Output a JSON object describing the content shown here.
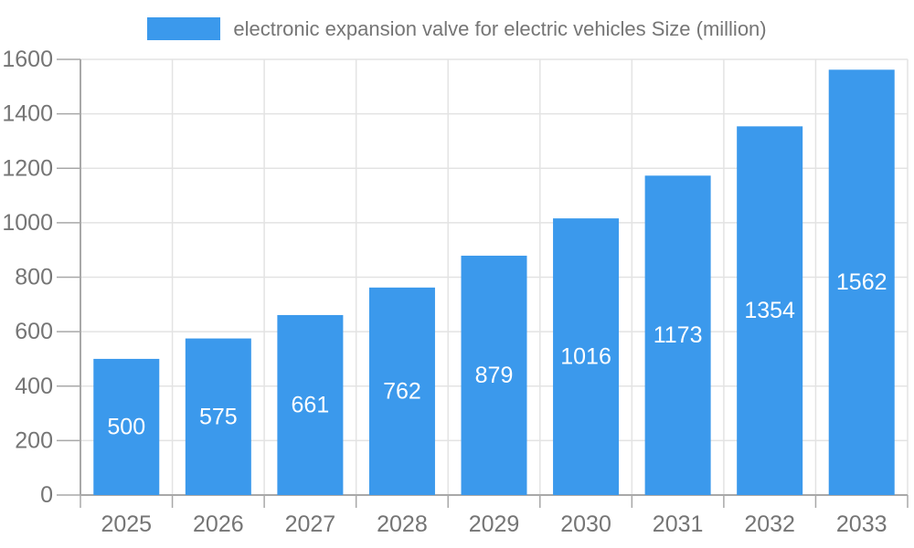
{
  "chart_data": {
    "type": "bar",
    "title": "electronic expansion valve for electric vehicles Size (million)",
    "categories": [
      "2025",
      "2026",
      "2027",
      "2028",
      "2029",
      "2030",
      "2031",
      "2032",
      "2033"
    ],
    "values": [
      500,
      575,
      661,
      762,
      879,
      1016,
      1173,
      1354,
      1562
    ],
    "xlabel": "",
    "ylabel": "",
    "ylim": [
      0,
      1600
    ],
    "ytick_step": 200,
    "yticks": [
      0,
      200,
      400,
      600,
      800,
      1000,
      1200,
      1400,
      1600
    ],
    "grid": true,
    "legend_position": "top",
    "bar_color": "#3B99EC",
    "bar_label_color": "#FFFFFF",
    "grid_color": "#E3E3E3",
    "axis_color": "#A8A8A8",
    "tick_label_color": "#757575",
    "legend_text_color": "#757575"
  }
}
